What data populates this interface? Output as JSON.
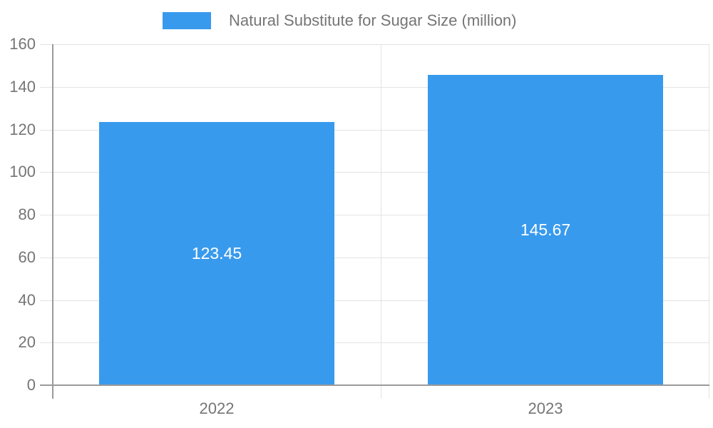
{
  "chart_data": {
    "type": "bar",
    "title": "",
    "legend_entries": [
      "Natural Substitute for Sugar Size (million)"
    ],
    "legend_position": "top",
    "categories": [
      "2022",
      "2023"
    ],
    "series": [
      {
        "name": "Natural Substitute for Sugar Size (million)",
        "values": [
          123.45,
          145.67
        ],
        "value_labels": [
          "123.45",
          "145.67"
        ]
      }
    ],
    "xlabel": "",
    "ylabel": "",
    "ylim": [
      0,
      160
    ],
    "yticks": [
      0,
      20,
      40,
      60,
      80,
      100,
      120,
      140,
      160
    ],
    "grid": true,
    "colors": {
      "bar": "#389aed",
      "grid_line": "#e3e3e3",
      "axis_line": "#9a9a9a",
      "tick_label": "#757575",
      "data_label": "#ffffff",
      "legend_text": "#757575",
      "background": "#ffffff"
    }
  }
}
